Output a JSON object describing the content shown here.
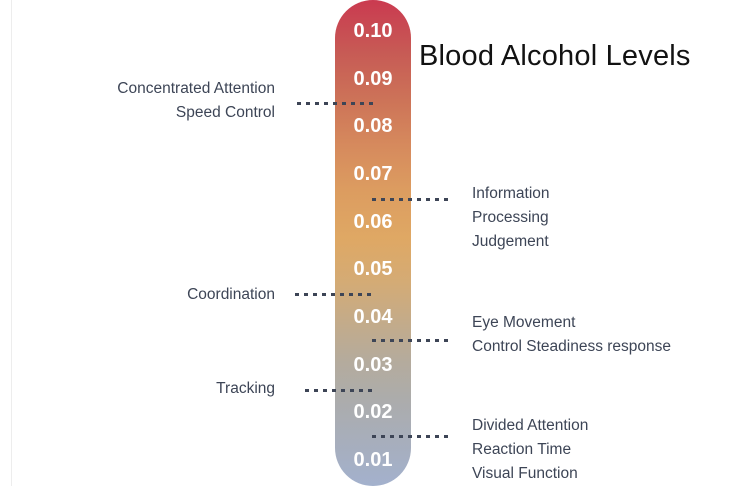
{
  "title": "Blood Alcohol Levels",
  "scale": {
    "values": [
      "0.10",
      "0.09",
      "0.08",
      "0.07",
      "0.06",
      "0.05",
      "0.04",
      "0.03",
      "0.02",
      "0.01"
    ]
  },
  "left_labels": [
    {
      "lines": [
        "Concentrated Attention",
        "Speed Control"
      ]
    },
    {
      "lines": [
        "Coordination"
      ]
    },
    {
      "lines": [
        "Tracking"
      ]
    }
  ],
  "right_labels": [
    {
      "lines": [
        "Information",
        "Processing",
        "Judgement"
      ]
    },
    {
      "lines": [
        "Eye Movement",
        "Control Steadiness response"
      ]
    },
    {
      "lines": [
        "Divided Attention",
        "Reaction Time",
        "Visual Function"
      ]
    }
  ],
  "colors": {
    "scale_top": "#ca3a50",
    "scale_mid": "#dfa864",
    "scale_bottom": "#a3b1cd",
    "value_text": "#ffffff",
    "label_text": "#3d4556",
    "connector": "#3d4556",
    "title_text": "#121212"
  },
  "chart_data": {
    "type": "table",
    "title": "Blood Alcohol Levels",
    "scale_values": [
      0.1,
      0.09,
      0.08,
      0.07,
      0.06,
      0.05,
      0.04,
      0.03,
      0.02,
      0.01
    ],
    "annotations": [
      {
        "bac_between": [
          0.09,
          0.08
        ],
        "side": "left",
        "effects": [
          "Concentrated Attention",
          "Speed Control"
        ]
      },
      {
        "bac_between": [
          0.07,
          0.06
        ],
        "side": "right",
        "effects": [
          "Information",
          "Processing",
          "Judgement"
        ]
      },
      {
        "bac_between": [
          0.05,
          0.04
        ],
        "side": "left",
        "effects": [
          "Coordination"
        ]
      },
      {
        "bac_between": [
          0.04,
          0.03
        ],
        "side": "right",
        "effects": [
          "Eye Movement",
          "Control Steadiness response"
        ]
      },
      {
        "bac_between": [
          0.03,
          0.02
        ],
        "side": "left",
        "effects": [
          "Tracking"
        ]
      },
      {
        "bac_between": [
          0.02,
          0.01
        ],
        "side": "right",
        "effects": [
          "Divided Attention",
          "Reaction Time",
          "Visual Function"
        ]
      }
    ]
  }
}
